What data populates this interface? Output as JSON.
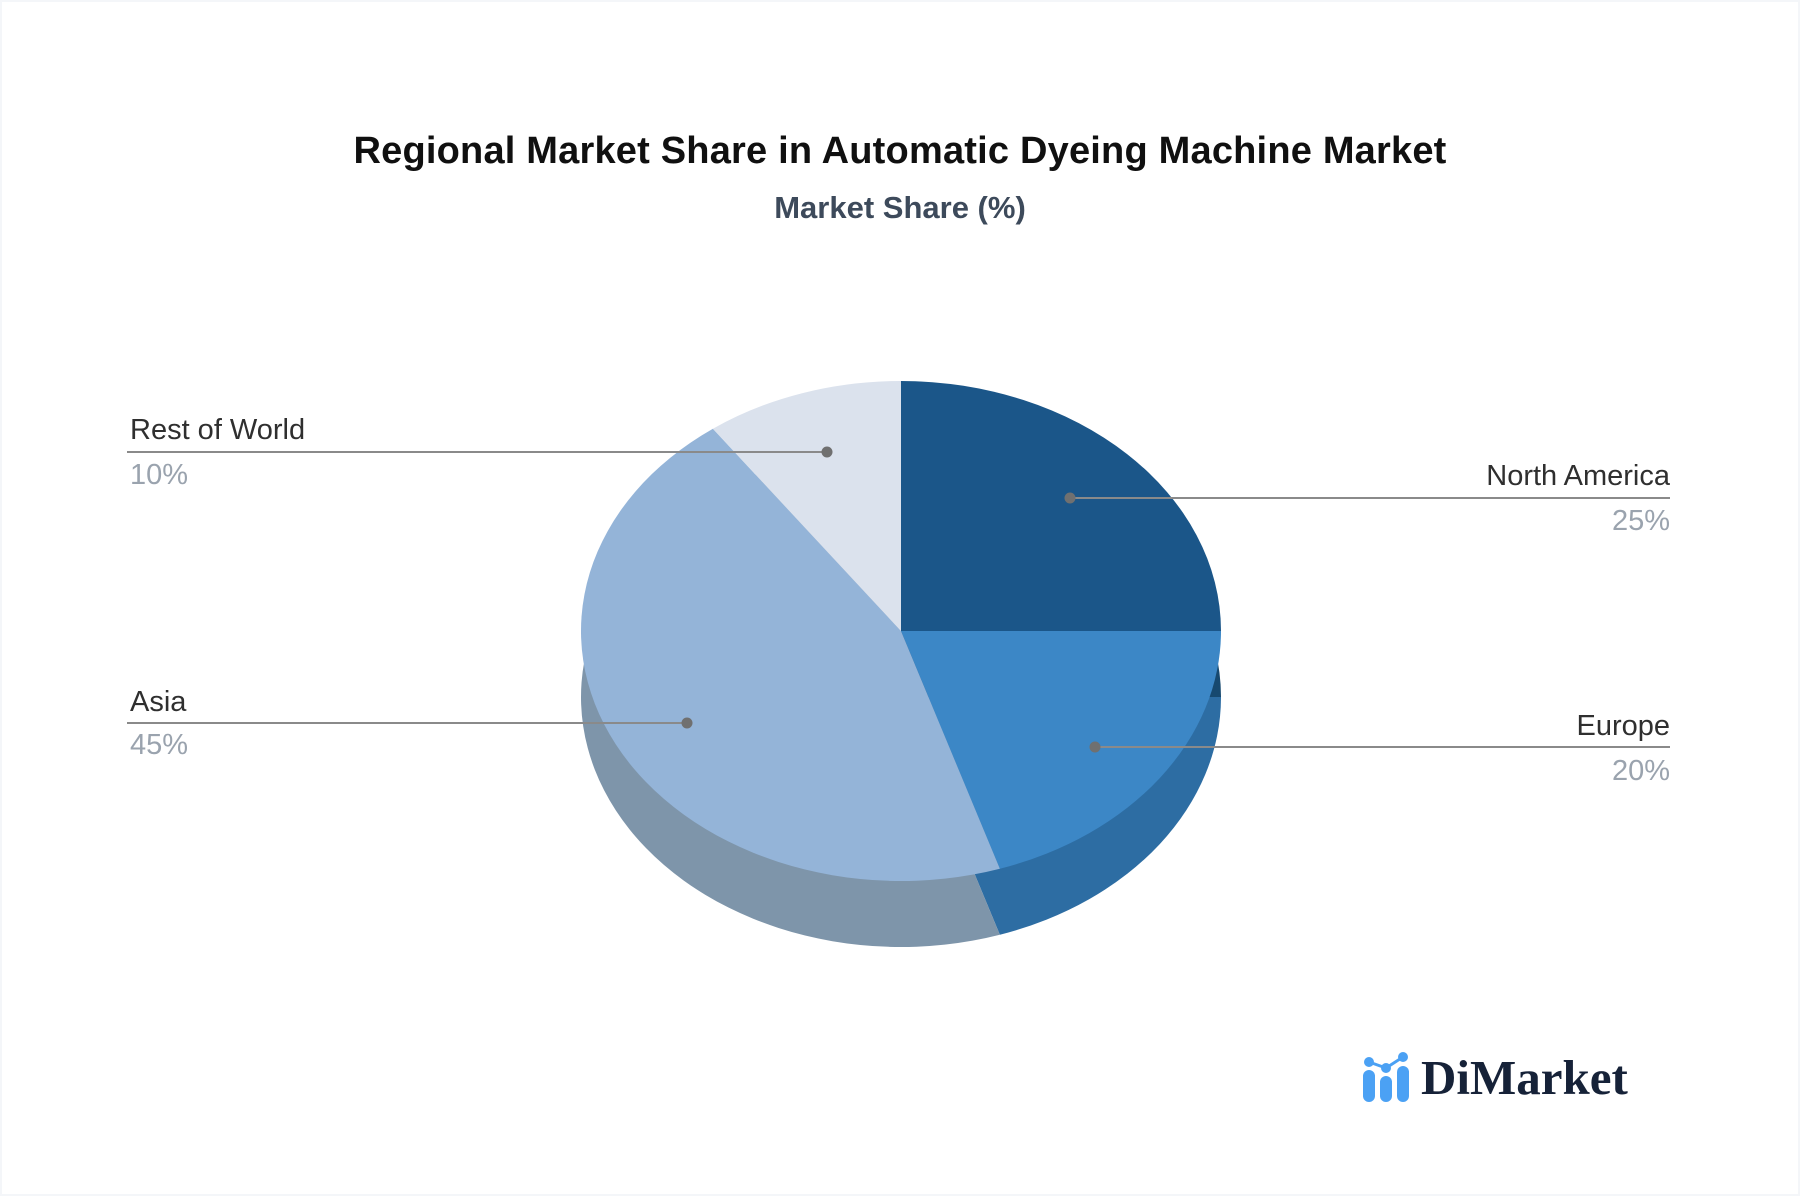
{
  "title": "Regional Market Share in Automatic Dyeing Machine Market",
  "subtitle": "Market Share (%)",
  "brand": {
    "name": "DiMarket",
    "icon": "bar-chart-trend-icon",
    "text_color": "#162238",
    "icon_color": "#4ba1f4"
  },
  "colors": {
    "background": "#ffffff",
    "title": "#101010",
    "subtitle": "#3d4a5b",
    "label_text": "#2f2f2f",
    "percent_text": "#9aa3ae",
    "leader_line": "#8a8a8a",
    "leader_dot": "#707070"
  },
  "chart_data": {
    "type": "pie",
    "title": "Regional Market Share in Automatic Dyeing Machine Market",
    "subtitle": "Market Share (%)",
    "unit": "%",
    "style": "pseudo-3d",
    "start_angle_deg": 0,
    "direction": "clockwise",
    "legend_position": "none",
    "labels_show_percent": true,
    "slices": [
      {
        "label": "North America",
        "value": 25,
        "value_label": "25%",
        "color": "#1b5689",
        "side_color": "#17496f",
        "label_side": "right"
      },
      {
        "label": "Europe",
        "value": 20,
        "value_label": "20%",
        "color": "#3c87c6",
        "side_color": "#2d6da3",
        "label_side": "right"
      },
      {
        "label": "Asia",
        "value": 45,
        "value_label": "45%",
        "color": "#94b4d8",
        "side_color": "#7e95aa",
        "label_side": "left"
      },
      {
        "label": "Rest of World",
        "value": 10,
        "value_label": "10%",
        "color": "#dbe2ed",
        "side_color": "#b9c3d1",
        "label_side": "left"
      }
    ]
  }
}
